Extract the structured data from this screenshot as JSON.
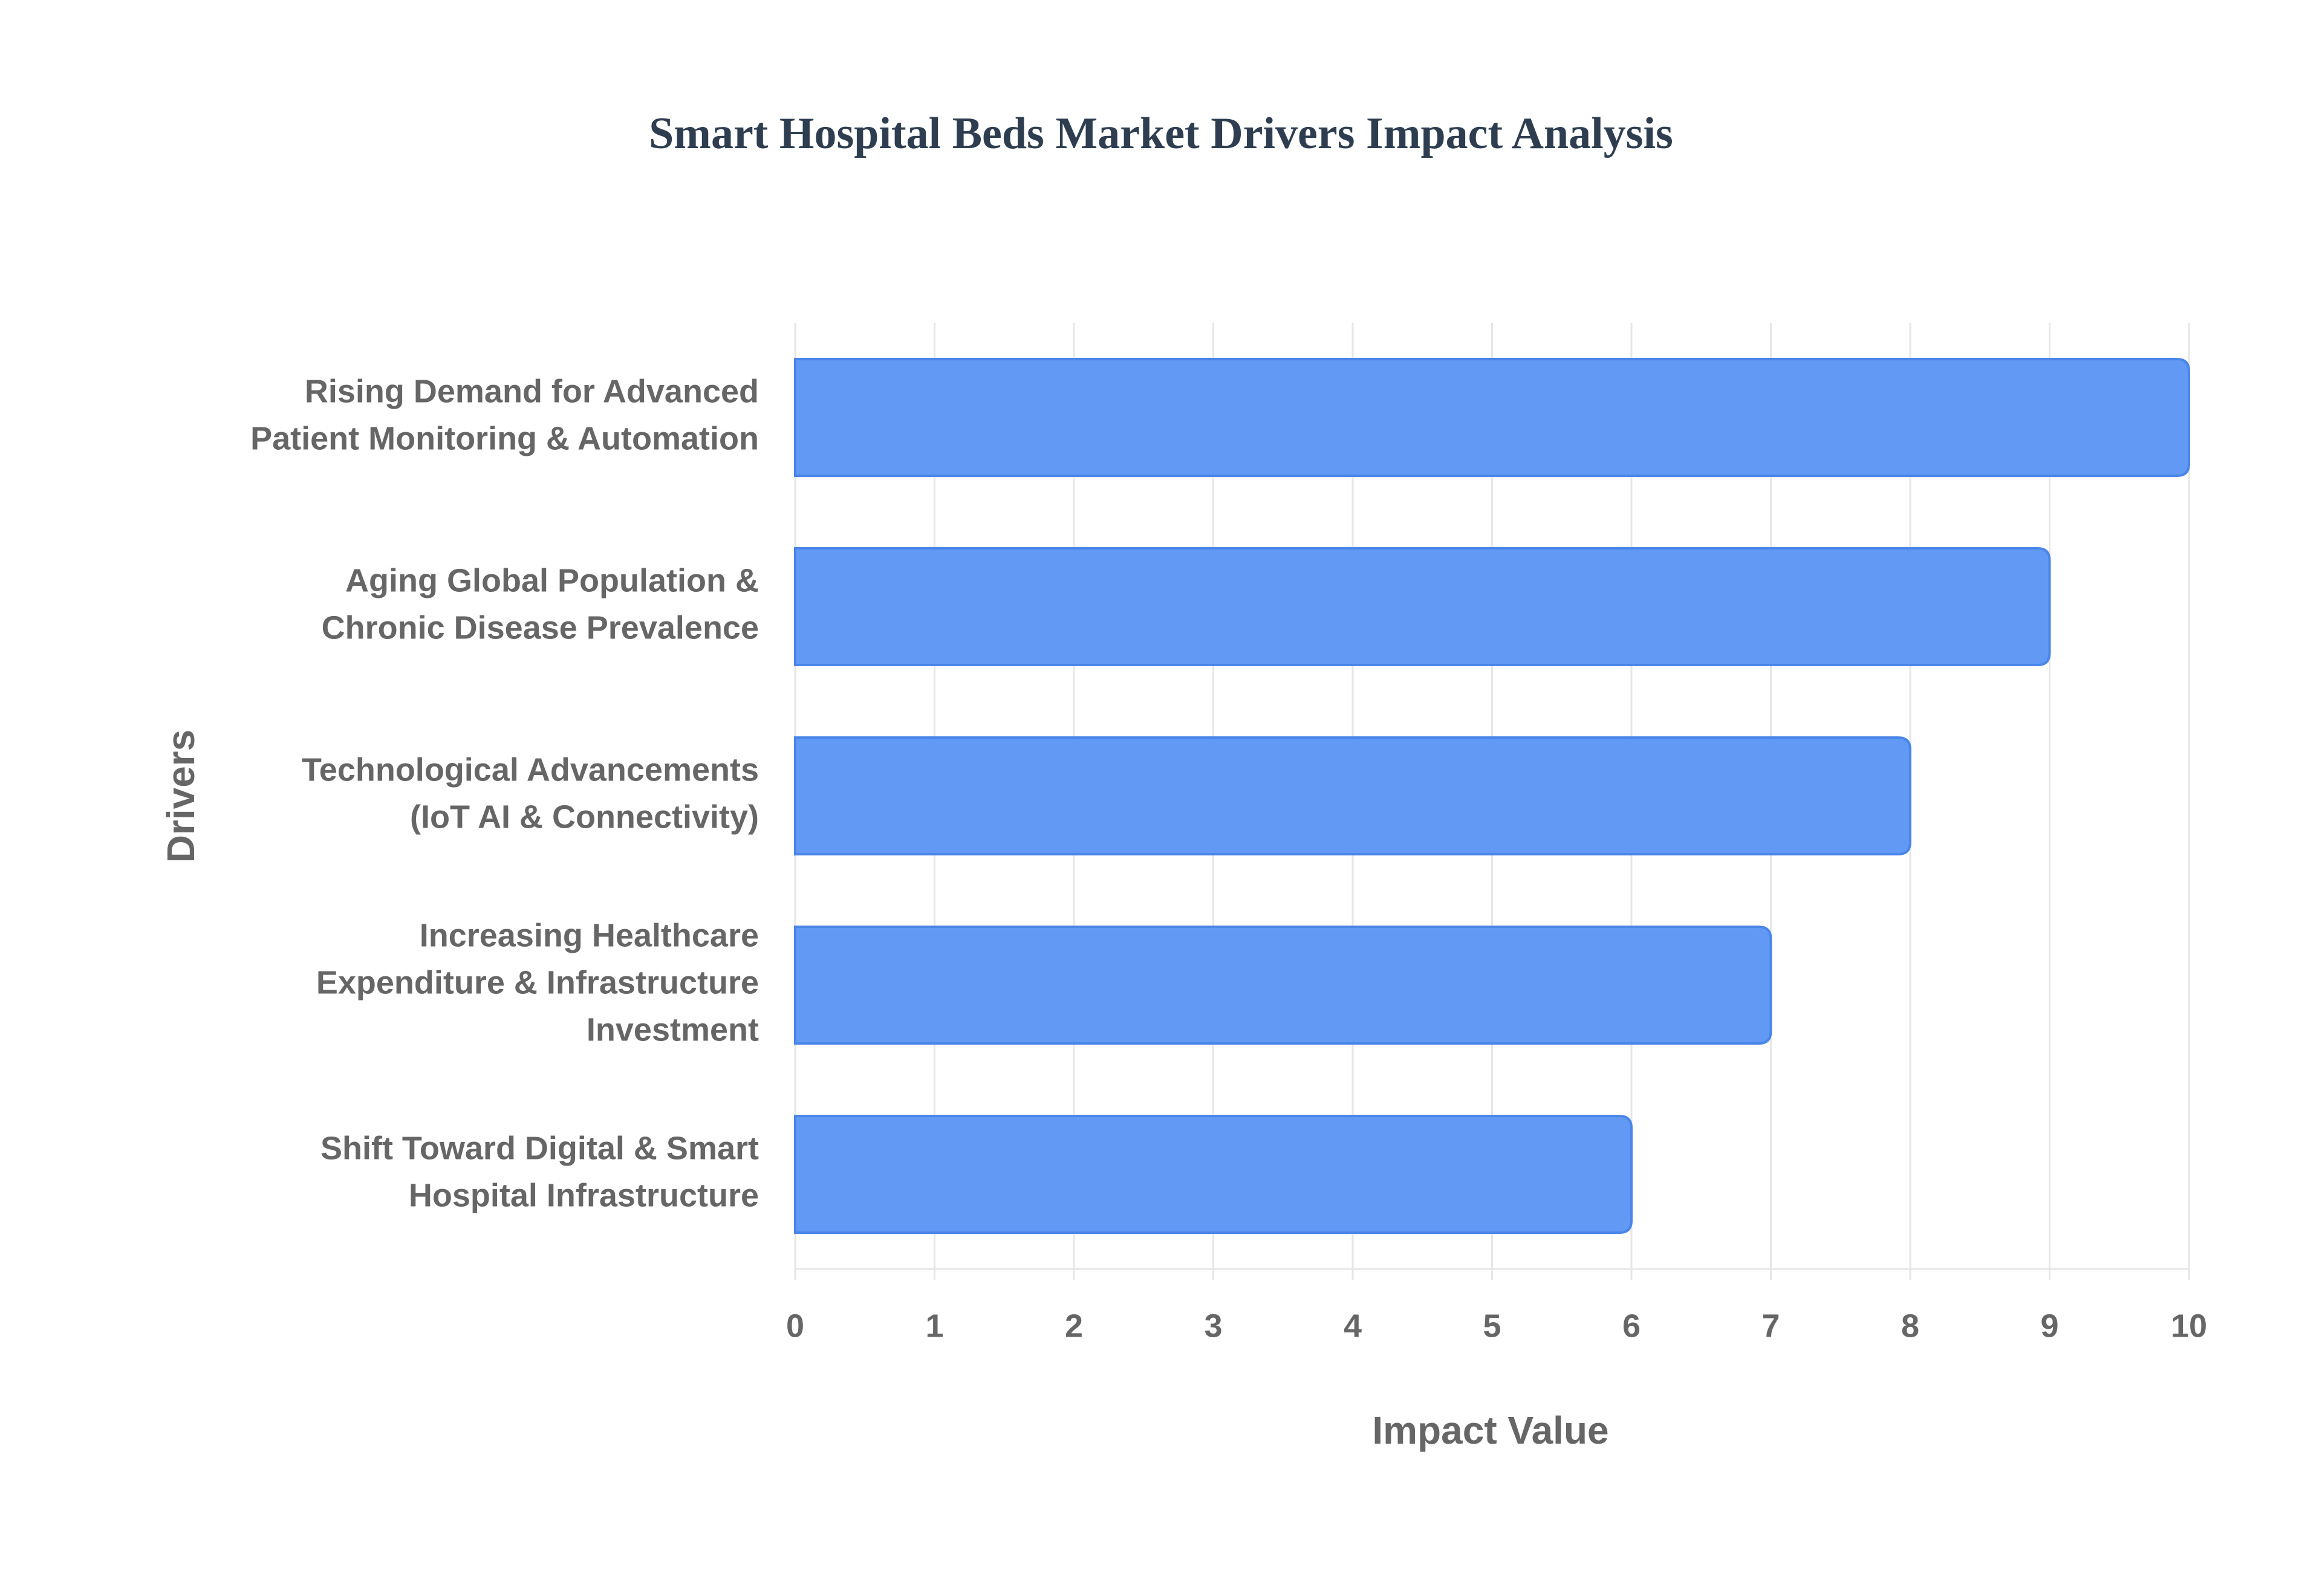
{
  "chart_data": {
    "type": "bar",
    "orientation": "horizontal",
    "title": "Smart Hospital Beds Market Drivers Impact Analysis",
    "x_label": "Impact Value",
    "y_label": "Drivers",
    "categories": [
      "Rising Demand for Advanced Patient Monitoring & Automation",
      "Aging Global Population & Chronic Disease Prevalence",
      "Technological Advancements (IoT AI & Connectivity)",
      "Increasing Healthcare Expenditure & Infrastructure Investment",
      "Shift Toward Digital & Smart Hospital Infrastructure"
    ],
    "values": [
      10,
      9,
      8,
      7,
      6
    ],
    "color": "#6199f5",
    "xlim": [
      0,
      10
    ],
    "xticks": [
      0,
      1,
      2,
      3,
      4,
      5,
      6,
      7,
      8,
      9,
      10
    ],
    "grid": true
  }
}
